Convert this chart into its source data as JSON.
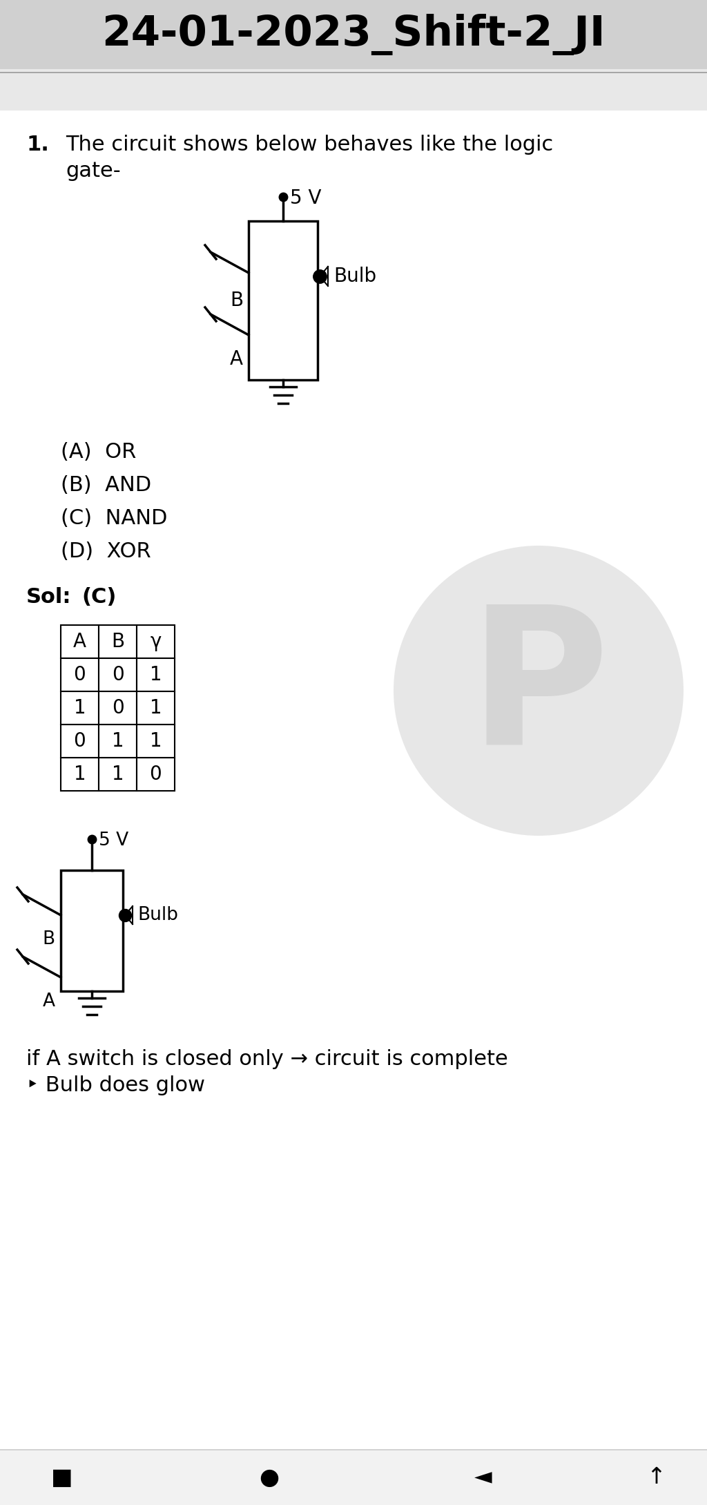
{
  "title": "24-01-2023_Shift-2_JI",
  "title_bg": "#d0d0d0",
  "page_bg": "#ffffff",
  "question_number": "1.",
  "options": [
    "(A)  OR",
    "(B)  AND",
    "(C)  NAND",
    "(D)  XOR"
  ],
  "solution_label": "Sol:",
  "solution_answer": "(C)",
  "truth_table_headers": [
    "A",
    "B",
    "γ"
  ],
  "truth_table_rows": [
    [
      0,
      0,
      1
    ],
    [
      1,
      0,
      1
    ],
    [
      0,
      1,
      1
    ],
    [
      1,
      1,
      0
    ]
  ],
  "bottom_line1": "if A switch is closed only → circuit is complete",
  "bottom_line2": "‣ Bulb does glow",
  "text_color": "#000000",
  "font_size_title": 44,
  "font_size_body": 22,
  "font_size_sol": 22,
  "font_size_table": 20,
  "watermark_color": "#c8c8c8",
  "nav_bg": "#f0f0f0"
}
